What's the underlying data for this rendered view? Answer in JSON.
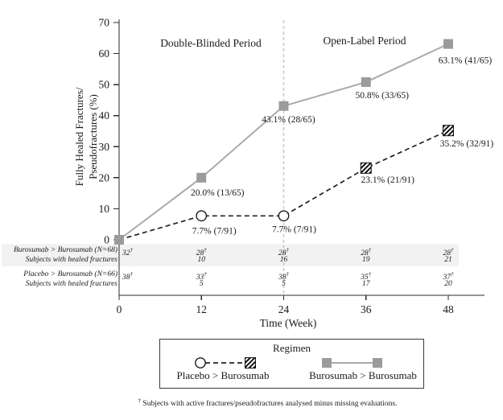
{
  "chart_data": {
    "type": "line",
    "period_labels": {
      "left": "Double-Blinded Period",
      "right": "Open-Label Period"
    },
    "xlabel": "Time (Week)",
    "ylabel_lines": [
      "Fully Healed Fractures/",
      "Pseudofractures (%)"
    ],
    "x": [
      0,
      12,
      24,
      36,
      48
    ],
    "xlim": [
      0,
      48
    ],
    "ylim": [
      0,
      70
    ],
    "yticks": [
      0,
      10,
      20,
      30,
      40,
      50,
      60,
      70
    ],
    "xticks": [
      0,
      12,
      24,
      36,
      48
    ],
    "reference_line_week": 24,
    "series": [
      {
        "name": "Burosumab > Burosumab",
        "values": [
          0,
          20.0,
          43.1,
          50.8,
          63.1
        ],
        "point_labels": [
          "",
          "20.0% (13/65)",
          "43.1% (28/65)",
          "50.8% (33/65)",
          "63.1% (41/65)"
        ],
        "markers": [
          "square",
          "square",
          "square",
          "square",
          "square"
        ],
        "line": "solid",
        "marker_color": "#9b9b9b",
        "line_color": "#aaaaaa",
        "label_dx": [
          0,
          20,
          6,
          20,
          21
        ],
        "label_dy": [
          0,
          22,
          20,
          20,
          24
        ]
      },
      {
        "name": "Placebo > Burosumab",
        "values": [
          0,
          7.7,
          7.7,
          23.1,
          35.2
        ],
        "point_labels": [
          "",
          "7.7% (7/91)",
          "7.7% (7/91)",
          "23.1% (21/91)",
          "35.2% (32/91)"
        ],
        "markers": [
          "none",
          "circle",
          "circle",
          "hatched",
          "hatched"
        ],
        "line": "dashed",
        "marker_color": "#1a1a1a",
        "line_color": "#222222",
        "label_dx": [
          0,
          16,
          13,
          27,
          23
        ],
        "label_dy": [
          0,
          22,
          20,
          18,
          20
        ]
      }
    ],
    "legend": {
      "title": "Regimen",
      "items": [
        "Placebo > Burosumab",
        "Burosumab > Burosumab"
      ],
      "position": "bottom"
    }
  },
  "table": {
    "columns": [
      0,
      12,
      24,
      36,
      48
    ],
    "rows": [
      {
        "label": "Burosumab > Burosumab (N=68)",
        "values": [
          "32†",
          "28†",
          "28†",
          "28†",
          "28†"
        ],
        "shaded": true
      },
      {
        "label": "Subjects with healed fractures",
        "values": [
          "",
          "10",
          "16",
          "19",
          "21"
        ],
        "shaded": true
      },
      {
        "label": "Placebo > Burosumab (N=66)",
        "values": [
          "38†",
          "33†",
          "38†",
          "35†",
          "37†"
        ],
        "shaded": false
      },
      {
        "label": "Subjects with healed fractures",
        "values": [
          "",
          "5",
          "5",
          "17",
          "20"
        ],
        "shaded": false
      }
    ]
  },
  "footnote": {
    "dagger": "†",
    "text": "Subjects with active fractures/pseudofractures analysed minus missing evaluations."
  },
  "colors": {
    "reference_line": "#c8c8c8",
    "table_shade": "#f2f2f2",
    "axis": "#2b2b2b"
  }
}
